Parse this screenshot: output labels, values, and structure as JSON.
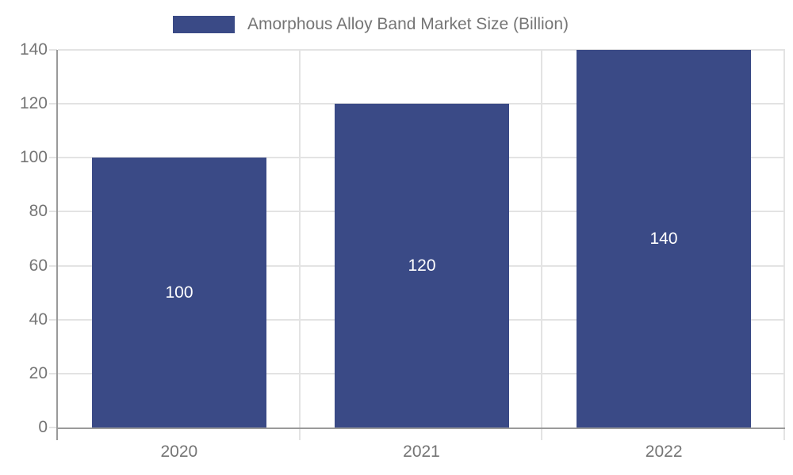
{
  "legend": {
    "label": "Amorphous Alloy Band Market Size (Billion)"
  },
  "chart_data": {
    "type": "bar",
    "title": "Amorphous Alloy Band Market Size (Billion)",
    "categories": [
      "2020",
      "2021",
      "2022"
    ],
    "series": [
      {
        "name": "Amorphous Alloy Band Market Size (Billion)",
        "values": [
          100,
          120,
          140
        ]
      }
    ],
    "data_labels": [
      "100",
      "120",
      "140"
    ],
    "xlabel": "",
    "ylabel": "",
    "ylim": [
      0,
      140
    ],
    "yticks": [
      0,
      20,
      40,
      60,
      80,
      100,
      120,
      140
    ],
    "grid": true,
    "legend_position": "top-center",
    "bar_width_fraction": 0.72
  },
  "colors": {
    "bar": "#3A4A86",
    "grid_line": "#E3E3E3",
    "axis_line": "#9A9A9A",
    "tick_label": "#757575",
    "legend_text": "#757575",
    "data_label": "#FFFFFF",
    "background": "#FFFFFF"
  }
}
